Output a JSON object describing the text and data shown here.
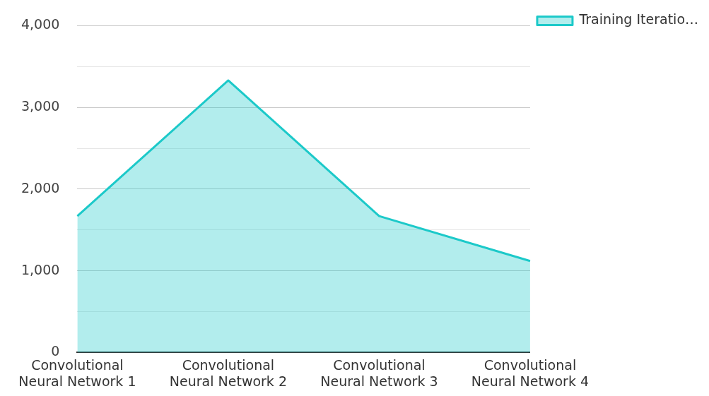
{
  "chart_data": {
    "type": "area",
    "categories": [
      "Convolutional Neural Network 1",
      "Convolutional Neural Network 2",
      "Convolutional Neural Network 3",
      "Convolutional Neural Network 4"
    ],
    "series": [
      {
        "name": "Training Iteratio…",
        "color": "#1cc9c9",
        "values": [
          1670,
          3330,
          1670,
          1120
        ]
      }
    ],
    "ylim": [
      0,
      4000
    ],
    "yticks": [
      0,
      {
        "value": 500,
        "label": null
      },
      {
        "value": 1000,
        "label": "1,000"
      },
      {
        "value": 1500,
        "label": null
      },
      {
        "value": 2000,
        "label": "2,000"
      },
      {
        "value": 2500,
        "label": null
      },
      {
        "value": 3000,
        "label": "3,000"
      },
      {
        "value": 3500,
        "label": null
      },
      {
        "value": 4000,
        "label": "4,000"
      }
    ],
    "grid": "y",
    "legend": "top right",
    "marker": "none"
  }
}
